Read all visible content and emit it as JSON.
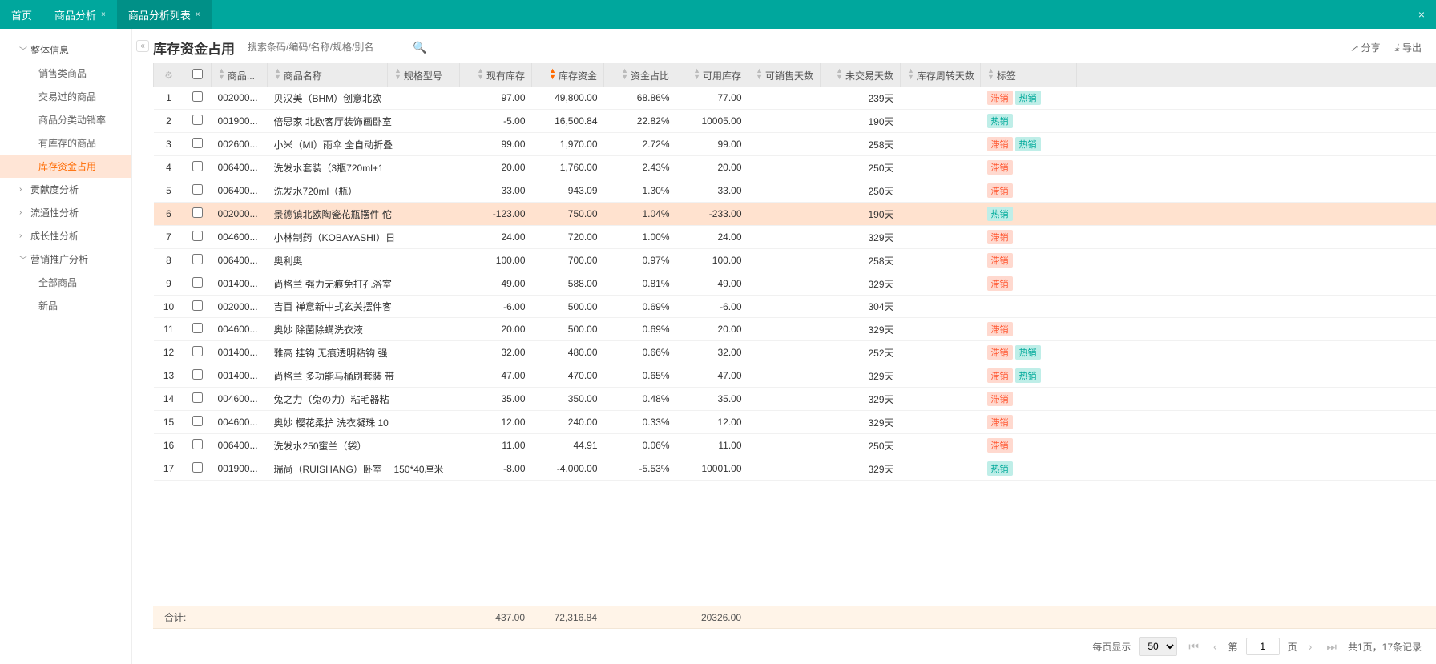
{
  "topbar": {
    "tabs": [
      {
        "label": "首页",
        "closeable": false,
        "active": false
      },
      {
        "label": "商品分析",
        "closeable": true,
        "active": false
      },
      {
        "label": "商品分析列表",
        "closeable": true,
        "active": true
      }
    ],
    "close_all_glyph": "×"
  },
  "sidebar": {
    "collapse_glyph": "«",
    "groups": [
      {
        "label": "整体信息",
        "expanded": true,
        "items": [
          {
            "label": "销售类商品",
            "active": false
          },
          {
            "label": "交易过的商品",
            "active": false
          },
          {
            "label": "商品分类动销率",
            "active": false
          },
          {
            "label": "有库存的商品",
            "active": false
          },
          {
            "label": "库存资金占用",
            "active": true
          }
        ]
      },
      {
        "label": "贡献度分析",
        "expanded": false,
        "items": []
      },
      {
        "label": "流通性分析",
        "expanded": false,
        "items": []
      },
      {
        "label": "成长性分析",
        "expanded": false,
        "items": []
      },
      {
        "label": "营销推广分析",
        "expanded": true,
        "items": [
          {
            "label": "全部商品",
            "active": false
          },
          {
            "label": "新品",
            "active": false
          }
        ]
      }
    ]
  },
  "page": {
    "title": "库存资金占用",
    "search_placeholder": "搜索条码/编码/名称/规格/别名",
    "share_label": "分享",
    "export_label": "导出",
    "share_icon": "↗",
    "export_icon": "⤓"
  },
  "table": {
    "gear_glyph": "⚙",
    "columns": [
      {
        "key": "idx",
        "label": "",
        "w": 38,
        "align": "ctr",
        "type": "gear"
      },
      {
        "key": "chk",
        "label": "",
        "w": 34,
        "align": "ctr",
        "type": "chk"
      },
      {
        "key": "code",
        "label": "商品...",
        "w": 70,
        "align": "left"
      },
      {
        "key": "name",
        "label": "商品名称",
        "w": 150,
        "align": "left"
      },
      {
        "key": "spec",
        "label": "规格型号",
        "w": 90,
        "align": "left"
      },
      {
        "key": "stock",
        "label": "现有库存",
        "w": 90,
        "align": "num"
      },
      {
        "key": "fund",
        "label": "库存资金",
        "w": 90,
        "align": "num",
        "sorted": true
      },
      {
        "key": "pct",
        "label": "资金占比",
        "w": 90,
        "align": "num"
      },
      {
        "key": "avail",
        "label": "可用库存",
        "w": 90,
        "align": "num"
      },
      {
        "key": "saledays",
        "label": "可销售天数",
        "w": 90,
        "align": "num"
      },
      {
        "key": "notrade",
        "label": "未交易天数",
        "w": 100,
        "align": "num"
      },
      {
        "key": "turnover",
        "label": "库存周转天数",
        "w": 100,
        "align": "num"
      },
      {
        "key": "tags",
        "label": "标签",
        "w": 120,
        "align": "left",
        "type": "tags"
      }
    ],
    "rows": [
      {
        "idx": 1,
        "code": "002000...",
        "name": "贝汉美（BHM）创意北欧",
        "spec": "",
        "stock": "97.00",
        "fund": "49,800.00",
        "pct": "68.86%",
        "avail": "77.00",
        "saledays": "",
        "notrade": "239天",
        "turnover": "",
        "tags": [
          "滞销",
          "热销"
        ]
      },
      {
        "idx": 2,
        "code": "001900...",
        "name": "倍思家 北欧客厅装饰画卧室",
        "spec": "",
        "stock": "-5.00",
        "fund": "16,500.84",
        "pct": "22.82%",
        "avail": "10005.00",
        "saledays": "",
        "notrade": "190天",
        "turnover": "",
        "tags": [
          "热销"
        ]
      },
      {
        "idx": 3,
        "code": "002600...",
        "name": "小米（MI）雨伞 全自动折叠",
        "spec": "",
        "stock": "99.00",
        "fund": "1,970.00",
        "pct": "2.72%",
        "avail": "99.00",
        "saledays": "",
        "notrade": "258天",
        "turnover": "",
        "tags": [
          "滞销",
          "热销"
        ]
      },
      {
        "idx": 4,
        "code": "006400...",
        "name": "洗发水套装（3瓶720ml+1",
        "spec": "",
        "stock": "20.00",
        "fund": "1,760.00",
        "pct": "2.43%",
        "avail": "20.00",
        "saledays": "",
        "notrade": "250天",
        "turnover": "",
        "tags": [
          "滞销"
        ]
      },
      {
        "idx": 5,
        "code": "006400...",
        "name": "洗发水720ml（瓶）",
        "spec": "",
        "stock": "33.00",
        "fund": "943.09",
        "pct": "1.30%",
        "avail": "33.00",
        "saledays": "",
        "notrade": "250天",
        "turnover": "",
        "tags": [
          "滞销"
        ]
      },
      {
        "idx": 6,
        "code": "002000...",
        "name": "景德镇北欧陶瓷花瓶摆件 佗",
        "spec": "",
        "stock": "-123.00",
        "fund": "750.00",
        "pct": "1.04%",
        "avail": "-233.00",
        "saledays": "",
        "notrade": "190天",
        "turnover": "",
        "tags": [
          "热销"
        ],
        "hl": true
      },
      {
        "idx": 7,
        "code": "004600...",
        "name": "小林制药（KOBAYASHI）日",
        "spec": "",
        "stock": "24.00",
        "fund": "720.00",
        "pct": "1.00%",
        "avail": "24.00",
        "saledays": "",
        "notrade": "329天",
        "turnover": "",
        "tags": [
          "滞销"
        ]
      },
      {
        "idx": 8,
        "code": "006400...",
        "name": "奥利奥",
        "spec": "",
        "stock": "100.00",
        "fund": "700.00",
        "pct": "0.97%",
        "avail": "100.00",
        "saledays": "",
        "notrade": "258天",
        "turnover": "",
        "tags": [
          "滞销"
        ]
      },
      {
        "idx": 9,
        "code": "001400...",
        "name": "尚格兰 强力无痕免打孔浴室",
        "spec": "",
        "stock": "49.00",
        "fund": "588.00",
        "pct": "0.81%",
        "avail": "49.00",
        "saledays": "",
        "notrade": "329天",
        "turnover": "",
        "tags": [
          "滞销"
        ]
      },
      {
        "idx": 10,
        "code": "002000...",
        "name": "吉百 禅意新中式玄关摆件客",
        "spec": "",
        "stock": "-6.00",
        "fund": "500.00",
        "pct": "0.69%",
        "avail": "-6.00",
        "saledays": "",
        "notrade": "304天",
        "turnover": "",
        "tags": []
      },
      {
        "idx": 11,
        "code": "004600...",
        "name": "奥妙 除菌除螨洗衣液",
        "spec": "",
        "stock": "20.00",
        "fund": "500.00",
        "pct": "0.69%",
        "avail": "20.00",
        "saledays": "",
        "notrade": "329天",
        "turnover": "",
        "tags": [
          "滞销"
        ]
      },
      {
        "idx": 12,
        "code": "001400...",
        "name": "雅高 挂钩 无痕透明粘钩 强",
        "spec": "",
        "stock": "32.00",
        "fund": "480.00",
        "pct": "0.66%",
        "avail": "32.00",
        "saledays": "",
        "notrade": "252天",
        "turnover": "",
        "tags": [
          "滞销",
          "热销"
        ]
      },
      {
        "idx": 13,
        "code": "001400...",
        "name": "尚格兰 多功能马桶刷套装 带",
        "spec": "",
        "stock": "47.00",
        "fund": "470.00",
        "pct": "0.65%",
        "avail": "47.00",
        "saledays": "",
        "notrade": "329天",
        "turnover": "",
        "tags": [
          "滞销",
          "热销"
        ]
      },
      {
        "idx": 14,
        "code": "004600...",
        "name": "兔之力（兔の力）粘毛器粘",
        "spec": "",
        "stock": "35.00",
        "fund": "350.00",
        "pct": "0.48%",
        "avail": "35.00",
        "saledays": "",
        "notrade": "329天",
        "turnover": "",
        "tags": [
          "滞销"
        ]
      },
      {
        "idx": 15,
        "code": "004600...",
        "name": "奥妙 樱花柔护 洗衣凝珠 10",
        "spec": "",
        "stock": "12.00",
        "fund": "240.00",
        "pct": "0.33%",
        "avail": "12.00",
        "saledays": "",
        "notrade": "329天",
        "turnover": "",
        "tags": [
          "滞销"
        ]
      },
      {
        "idx": 16,
        "code": "006400...",
        "name": "洗发水250蜜兰（袋）",
        "spec": "",
        "stock": "11.00",
        "fund": "44.91",
        "pct": "0.06%",
        "avail": "11.00",
        "saledays": "",
        "notrade": "250天",
        "turnover": "",
        "tags": [
          "滞销"
        ]
      },
      {
        "idx": 17,
        "code": "001900...",
        "name": "瑞尚（RUISHANG）卧室",
        "spec": "150*40厘米",
        "stock": "-8.00",
        "fund": "-4,000.00",
        "pct": "-5.53%",
        "avail": "10001.00",
        "saledays": "",
        "notrade": "329天",
        "turnover": "",
        "tags": [
          "热销"
        ]
      }
    ],
    "totals": {
      "label": "合计:",
      "stock": "437.00",
      "fund": "72,316.84",
      "avail": "20326.00"
    },
    "tag_styles": {
      "滞销": "b-stag",
      "热销": "b-hot"
    }
  },
  "pager": {
    "perpage_label": "每页显示",
    "perpage": "50",
    "page_word_prefix": "第",
    "page": "1",
    "page_word_suffix": "页",
    "summary": "共1页，17条记录",
    "first": "⏮",
    "prev": "‹",
    "next": "›",
    "last": "⏭"
  }
}
